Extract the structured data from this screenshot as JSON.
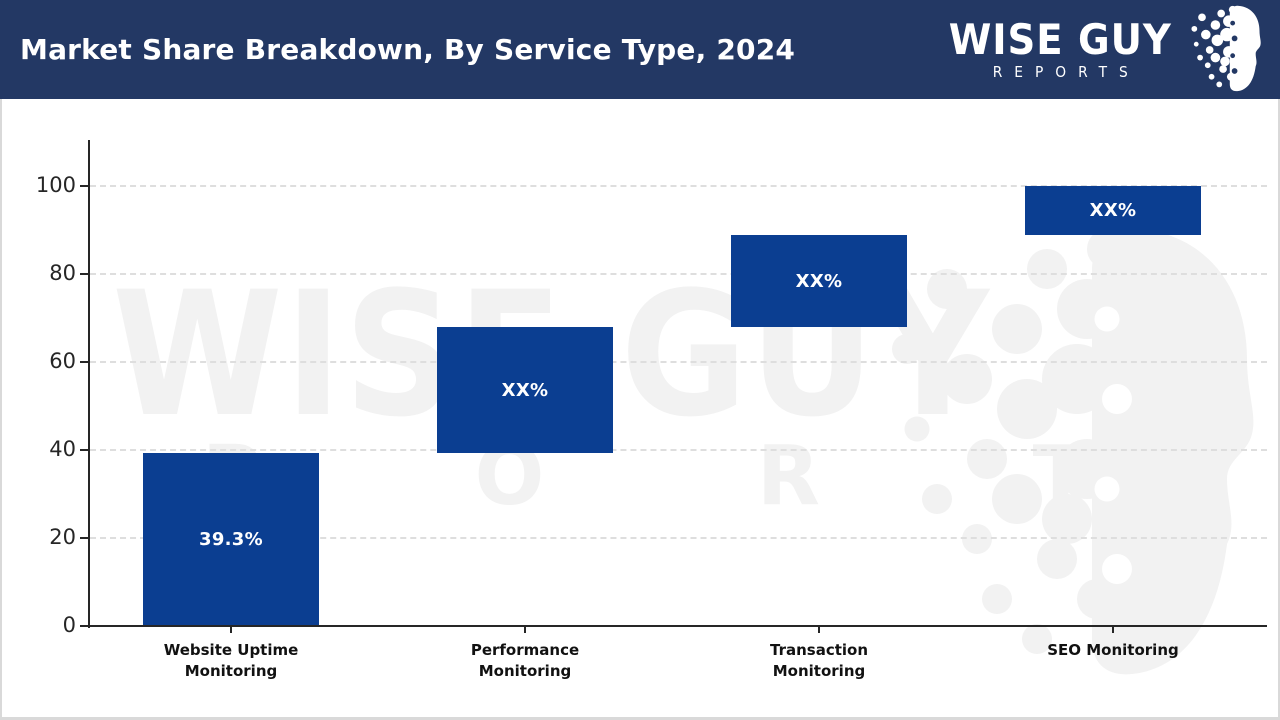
{
  "header": {
    "title": "Market Share Breakdown, By Service Type, 2024",
    "logo": {
      "line1": "WISE GUY",
      "line2": "REPORTS"
    },
    "bg_color": "#233864"
  },
  "watermark": {
    "line1": "WISE GUY",
    "line2": "P O R T S"
  },
  "chart_data": {
    "type": "waterfall",
    "title": "Market Share Breakdown, By Service Type, 2024",
    "categories": [
      "Website Uptime Monitoring",
      "Performance Monitoring",
      "Transaction Monitoring",
      "SEO Monitoring"
    ],
    "category_label_lines": [
      [
        "Website Uptime",
        "Monitoring"
      ],
      [
        "Performance",
        "Monitoring"
      ],
      [
        "Transaction",
        "Monitoring"
      ],
      [
        "SEO Monitoring"
      ]
    ],
    "segments": [
      {
        "start": 0,
        "end": 39.3,
        "label": "39.3%"
      },
      {
        "start": 39.3,
        "end": 67.9,
        "label": "XX%"
      },
      {
        "start": 67.9,
        "end": 88.9,
        "label": "XX%"
      },
      {
        "start": 88.9,
        "end": 100,
        "label": "XX%"
      }
    ],
    "values": [
      39.3,
      28.6,
      21.0,
      11.1
    ],
    "bar_labels": [
      "39.3%",
      "XX%",
      "XX%",
      "XX%"
    ],
    "yticks": [
      0,
      20,
      40,
      60,
      80,
      100
    ],
    "ylim": [
      0,
      107.3
    ],
    "xlabel": "",
    "ylabel": "",
    "grid": "dashed-horizontal",
    "legend": "none",
    "bar_color": "#0b3e91",
    "bar_label_color": "#ffffff",
    "axis_color": "#262626",
    "grid_color": "#dedede"
  }
}
